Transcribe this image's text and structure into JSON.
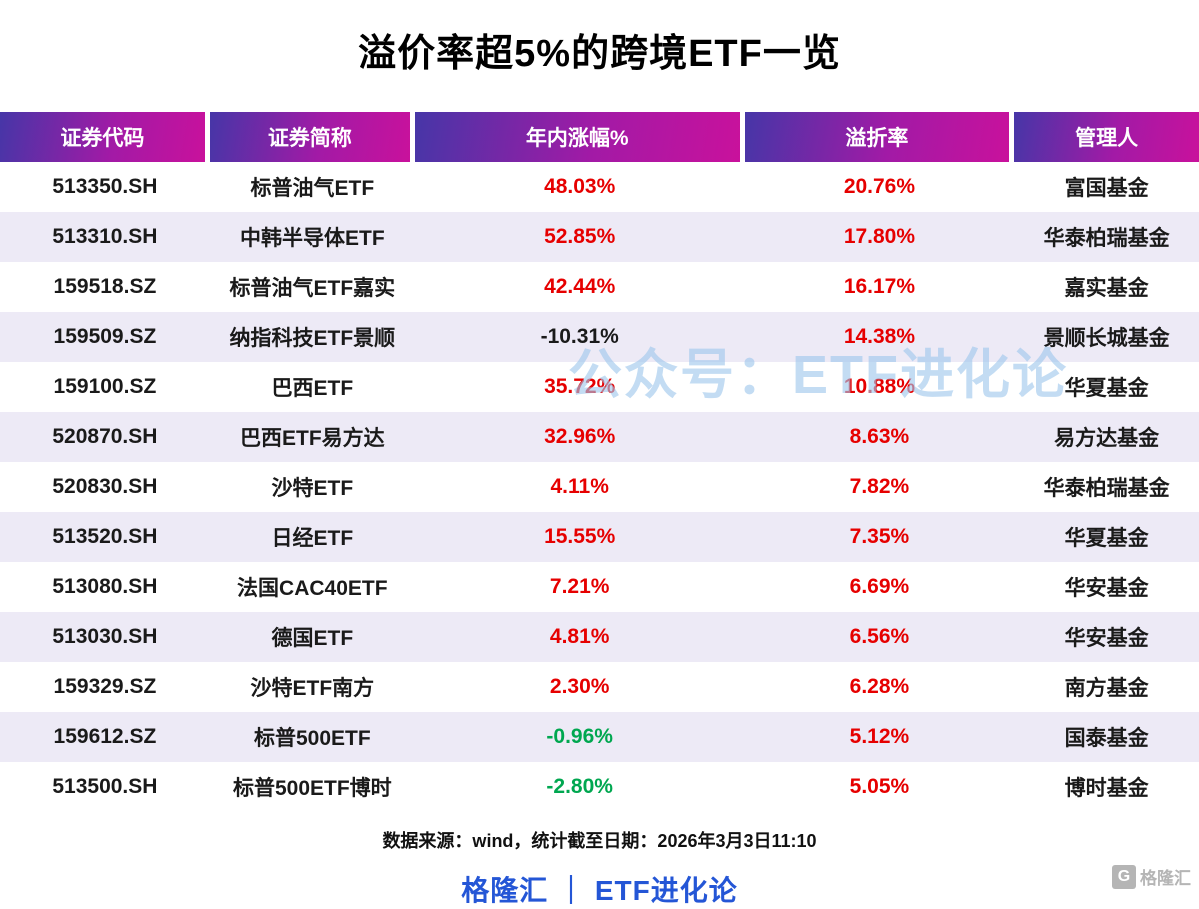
{
  "title": "溢价率超5%的跨境ETF一览",
  "watermark": "公众号：ETF进化论",
  "chart_data": {
    "type": "table",
    "title": "溢价率超5%的跨境ETF一览",
    "columns": [
      "证券代码",
      "证券简称",
      "年内涨幅%",
      "溢折率",
      "管理人"
    ],
    "rows": [
      {
        "code": "513350.SH",
        "name": "标普油气ETF",
        "ytd": "48.03%",
        "ytd_color": "red",
        "premium": "20.76%",
        "manager": "富国基金"
      },
      {
        "code": "513310.SH",
        "name": "中韩半导体ETF",
        "ytd": "52.85%",
        "ytd_color": "red",
        "premium": "17.80%",
        "manager": "华泰柏瑞基金"
      },
      {
        "code": "159518.SZ",
        "name": "标普油气ETF嘉实",
        "ytd": "42.44%",
        "ytd_color": "red",
        "premium": "16.17%",
        "manager": "嘉实基金"
      },
      {
        "code": "159509.SZ",
        "name": "纳指科技ETF景顺",
        "ytd": "-10.31%",
        "ytd_color": "dark",
        "premium": "14.38%",
        "manager": "景顺长城基金"
      },
      {
        "code": "159100.SZ",
        "name": "巴西ETF",
        "ytd": "35.72%",
        "ytd_color": "red",
        "premium": "10.88%",
        "manager": "华夏基金"
      },
      {
        "code": "520870.SH",
        "name": "巴西ETF易方达",
        "ytd": "32.96%",
        "ytd_color": "red",
        "premium": "8.63%",
        "manager": "易方达基金"
      },
      {
        "code": "520830.SH",
        "name": "沙特ETF",
        "ytd": "4.11%",
        "ytd_color": "red",
        "premium": "7.82%",
        "manager": "华泰柏瑞基金"
      },
      {
        "code": "513520.SH",
        "name": "日经ETF",
        "ytd": "15.55%",
        "ytd_color": "red",
        "premium": "7.35%",
        "manager": "华夏基金"
      },
      {
        "code": "513080.SH",
        "name": "法国CAC40ETF",
        "ytd": "7.21%",
        "ytd_color": "red",
        "premium": "6.69%",
        "manager": "华安基金"
      },
      {
        "code": "513030.SH",
        "name": "德国ETF",
        "ytd": "4.81%",
        "ytd_color": "red",
        "premium": "6.56%",
        "manager": "华安基金"
      },
      {
        "code": "159329.SZ",
        "name": "沙特ETF南方",
        "ytd": "2.30%",
        "ytd_color": "red",
        "premium": "6.28%",
        "manager": "南方基金"
      },
      {
        "code": "159612.SZ",
        "name": "标普500ETF",
        "ytd": "-0.96%",
        "ytd_color": "green",
        "premium": "5.12%",
        "manager": "国泰基金"
      },
      {
        "code": "513500.SH",
        "name": "标普500ETF博时",
        "ytd": "-2.80%",
        "ytd_color": "green",
        "premium": "5.05%",
        "manager": "博时基金"
      }
    ]
  },
  "footer": {
    "source": "数据来源：wind，统计截至日期：2026年3月3日11:10",
    "brand": "格隆汇 ｜ ETF进化论"
  },
  "corner_logo": {
    "glyph": "G",
    "text": "格隆汇"
  },
  "colors": {
    "red": "#e60000",
    "green": "#00a750",
    "dark": "#1a1a1a",
    "header_gradient_start": "#4636a7",
    "header_gradient_end": "#c9119c",
    "row_alt": "#edeaf6",
    "brand_blue": "#2456d6",
    "watermark_blue": "rgba(158,198,236,0.62)"
  }
}
